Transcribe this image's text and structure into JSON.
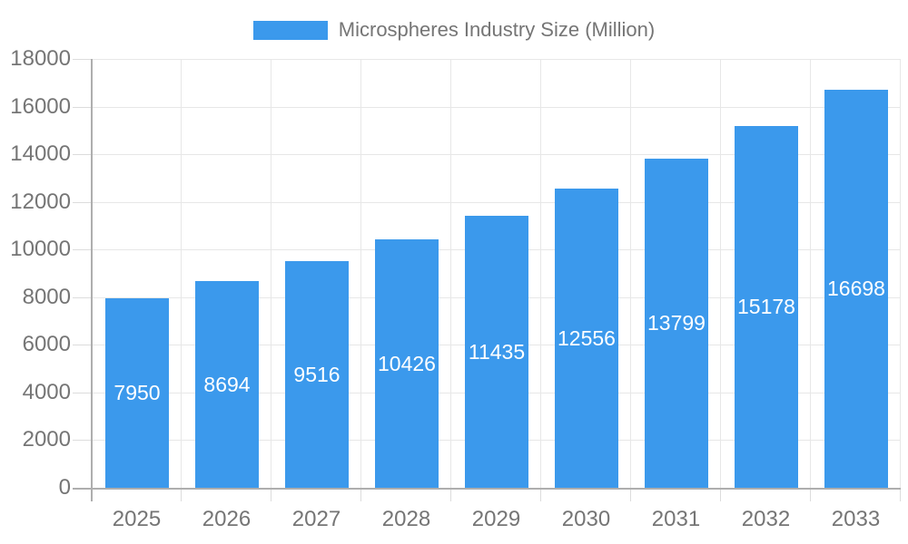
{
  "legend": {
    "label": "Microspheres Industry Size (Million)"
  },
  "chart_data": {
    "type": "bar",
    "title": "Microspheres Industry Size (Million)",
    "categories": [
      "2025",
      "2026",
      "2027",
      "2028",
      "2029",
      "2030",
      "2031",
      "2032",
      "2033"
    ],
    "values": [
      7950,
      8694,
      9516,
      10426,
      11435,
      12556,
      13799,
      15178,
      16698
    ],
    "xlabel": "",
    "ylabel": "",
    "ylim": [
      0,
      18000
    ],
    "ytick_step": 2000,
    "yticks": [
      0,
      2000,
      4000,
      6000,
      8000,
      10000,
      12000,
      14000,
      16000,
      18000
    ],
    "grid": true,
    "legend_position": "top",
    "bar_labels_inside": true,
    "colors": {
      "bar": "#3b99ec",
      "bar_value_label": "#ffffff",
      "axis_label": "#757575",
      "gridline": "#e7e7e7",
      "tick": "#dcdcdc",
      "axis_line": "#aeaeae",
      "background": "#ffffff"
    }
  }
}
